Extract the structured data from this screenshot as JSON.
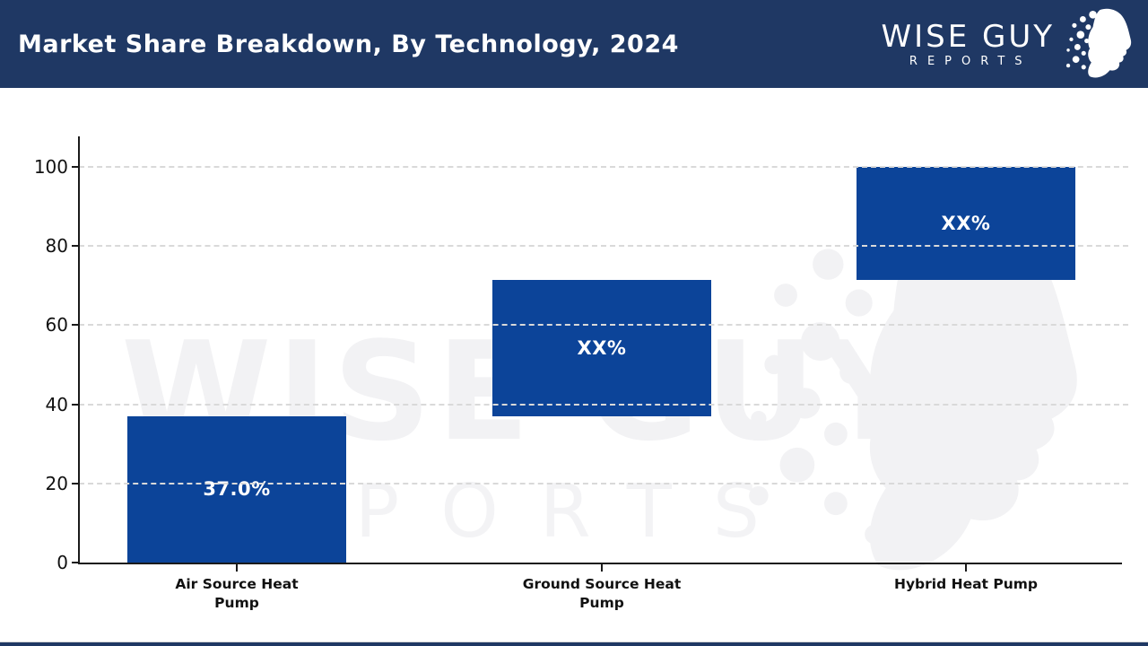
{
  "header": {
    "title": "Market Share Breakdown, By Technology, 2024",
    "logo": {
      "main": "WISE GUY",
      "sub": "REPORTS"
    }
  },
  "watermark": {
    "line1": "WISE GUY",
    "line2": "REPORTS"
  },
  "chart_data": {
    "type": "bar",
    "subtype": "waterfall-stacked-cumulative",
    "title": "Market Share Breakdown, By Technology, 2024",
    "categories": [
      "Air Source Heat Pump",
      "Ground Source Heat Pump",
      "Hybrid Heat Pump"
    ],
    "category_lines": [
      [
        "Air Source Heat",
        "Pump"
      ],
      [
        "Ground Source Heat",
        "Pump"
      ],
      [
        "Hybrid Heat Pump"
      ]
    ],
    "segments": [
      {
        "category": "Air Source Heat Pump",
        "start": 0,
        "end": 37,
        "label": "37.0%"
      },
      {
        "category": "Ground Source Heat Pump",
        "start": 37,
        "end": 71.4,
        "label": "XX%"
      },
      {
        "category": "Hybrid Heat Pump",
        "start": 71.4,
        "end": 100,
        "label": "XX%"
      }
    ],
    "yticks": [
      0,
      20,
      40,
      60,
      80,
      100
    ],
    "ylim": [
      0,
      108
    ],
    "xlabel": "",
    "ylabel": "",
    "legend": "none",
    "grid": "horizontal-dashed",
    "bar_color": "#0c4499",
    "grid_color": "#d9d9d9",
    "axis_color": "#1a1a1a",
    "value_label_color": "#ffffff"
  },
  "colors": {
    "header_bg": "#1f3864",
    "footer_bg": "#1f3864",
    "watermark": "#f2f2f4"
  }
}
